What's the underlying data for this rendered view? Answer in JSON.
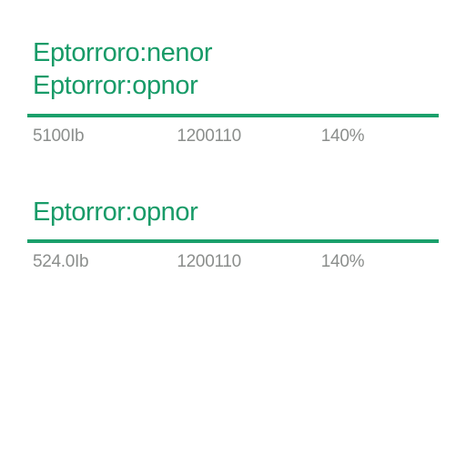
{
  "colors": {
    "brand": "#189b68",
    "muted": "#8b8e8c",
    "rule": "#1aa06b"
  },
  "blocks": [
    {
      "headings": [
        "Eptorroro:nenor",
        "Eptorror:opnor"
      ],
      "row": [
        "5100Ib",
        "1200110",
        "140%"
      ]
    },
    {
      "headings": [
        "Eptorror:opnor"
      ],
      "row": [
        "524.0Ib",
        "1200110",
        "140%"
      ]
    }
  ]
}
